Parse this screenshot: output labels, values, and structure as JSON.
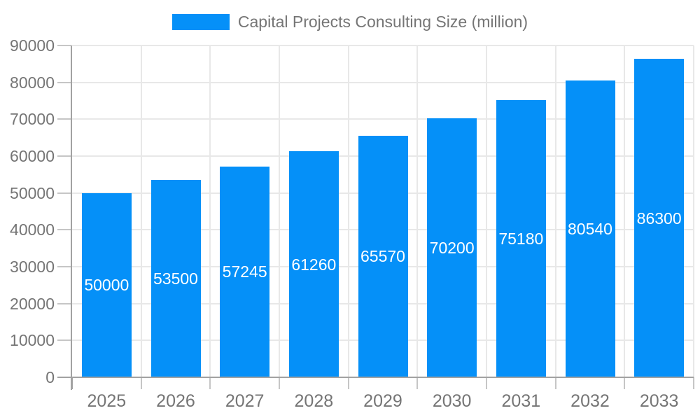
{
  "legend": {
    "label": "Capital Projects Consulting Size (million)"
  },
  "colors": {
    "bar": "#0590F8",
    "bar_label": "#FFFFFF",
    "axis_label": "#757575",
    "grid": "#E8E8E8",
    "axis_line": "#A2A2A2",
    "tick": "#C6C6C6",
    "background": "#FFFFFF"
  },
  "chart_data": {
    "type": "bar",
    "title": "Capital Projects Consulting Size (million)",
    "categories": [
      "2025",
      "2026",
      "2027",
      "2028",
      "2029",
      "2030",
      "2031",
      "2032",
      "2033"
    ],
    "values": [
      50000,
      53500,
      57245,
      61260,
      65570,
      70200,
      75180,
      80540,
      86300
    ],
    "xlabel": "",
    "ylabel": "",
    "ylim": [
      0,
      90000
    ],
    "y_ticks": [
      0,
      10000,
      20000,
      30000,
      40000,
      50000,
      60000,
      70000,
      80000,
      90000
    ],
    "grid": true,
    "bar_labels": "inside-centered",
    "legend_position": "top-center"
  }
}
